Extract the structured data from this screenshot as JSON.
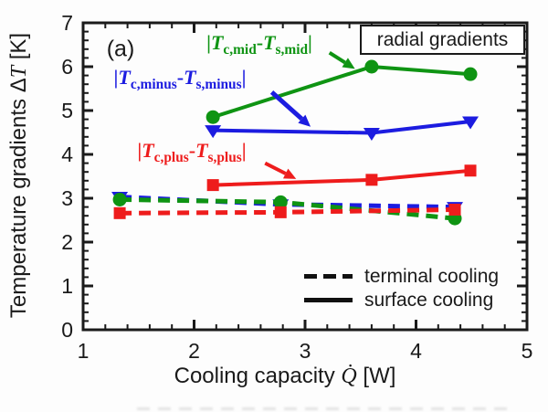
{
  "figure": {
    "panel_label": "(a)",
    "box_annotation": "radial gradients"
  },
  "axes": {
    "y_label_prefix": "Temperature gradients Δ",
    "y_label_symbol": "T",
    "y_label_unit": " [K]",
    "x_label_prefix": "Cooling capacity ",
    "x_label_symbol": "Q̇",
    "x_label_unit": " [W]"
  },
  "legend": {
    "terminal": "terminal cooling",
    "surface": "surface cooling"
  },
  "series_labels": {
    "mid": {
      "open": "|",
      "sym1": "T",
      "sub1": "c,mid",
      "dash": "-",
      "sym2": "T",
      "sub2": "s,mid",
      "close": "|"
    },
    "minus": {
      "open": "|",
      "sym1": "T",
      "sub1": "c,minus",
      "dash": "-",
      "sym2": "T",
      "sub2": "s,minus",
      "close": "|"
    },
    "plus": {
      "open": "|",
      "sym1": "T",
      "sub1": "c,plus",
      "dash": "-",
      "sym2": "T",
      "sub2": "s,plus",
      "close": "|"
    }
  },
  "colors": {
    "green": "#0f9413",
    "blue": "#1c1ce0",
    "red": "#ee1c1c",
    "axis": "#1a1a1a"
  },
  "chart_data": {
    "type": "line",
    "title": "",
    "xlabel": "Cooling capacity Q̇ [W]",
    "ylabel": "Temperature gradients ΔT [K]",
    "xlim": [
      1,
      5
    ],
    "ylim": [
      0,
      7
    ],
    "x_ticks": [
      1,
      2,
      3,
      4,
      5
    ],
    "y_ticks": [
      0,
      1,
      2,
      3,
      4,
      5,
      6,
      7
    ],
    "minor_tick_step": 0.2,
    "grid": false,
    "legend_position": "lower right",
    "annotation_box": "radial gradients",
    "series": [
      {
        "name": "|Tc,minus-Ts,minus| terminal cooling",
        "color_key": "blue",
        "style": "dashed",
        "marker": "triangle-down",
        "x": [
          1.33,
          2.78,
          4.35
        ],
        "y": [
          3.03,
          2.86,
          2.8
        ]
      },
      {
        "name": "|Tc,mid-Ts,mid| terminal cooling",
        "color_key": "green",
        "style": "dashed",
        "marker": "circle",
        "x": [
          1.33,
          2.78,
          4.35
        ],
        "y": [
          2.97,
          2.91,
          2.54
        ]
      },
      {
        "name": "|Tc,plus-Ts,plus| terminal cooling",
        "color_key": "red",
        "style": "dashed",
        "marker": "square",
        "x": [
          1.33,
          2.78,
          4.35
        ],
        "y": [
          2.66,
          2.68,
          2.74
        ]
      },
      {
        "name": "|Tc,mid-Ts,mid| surface cooling",
        "color_key": "green",
        "style": "solid",
        "marker": "circle",
        "x": [
          2.17,
          3.6,
          4.49
        ],
        "y": [
          4.85,
          6.0,
          5.83
        ]
      },
      {
        "name": "|Tc,minus-Ts,minus| surface cooling",
        "color_key": "blue",
        "style": "solid",
        "marker": "triangle-down",
        "x": [
          2.17,
          3.6,
          4.49
        ],
        "y": [
          4.55,
          4.49,
          4.75
        ]
      },
      {
        "name": "|Tc,plus-Ts,plus| surface cooling",
        "color_key": "red",
        "style": "solid",
        "marker": "square",
        "x": [
          2.17,
          3.6,
          4.49
        ],
        "y": [
          3.3,
          3.42,
          3.63
        ]
      }
    ],
    "arrows": [
      {
        "color_key": "green",
        "x1": 3.22,
        "y1": 6.32,
        "x2": 3.45,
        "y2": 5.95
      },
      {
        "color_key": "blue",
        "x1": 2.7,
        "y1": 5.42,
        "x2": 3.05,
        "y2": 4.63
      },
      {
        "color_key": "red",
        "x1": 2.64,
        "y1": 3.8,
        "x2": 2.92,
        "y2": 3.44
      }
    ]
  }
}
